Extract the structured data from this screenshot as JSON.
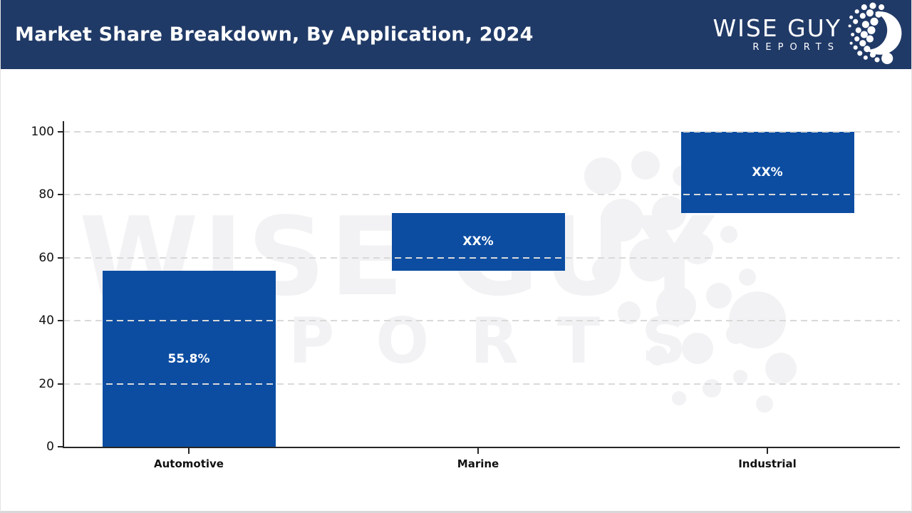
{
  "header": {
    "title": "Market Share Breakdown, By Application, 2024",
    "bg_color": "#203A67",
    "logo": {
      "line1": "WISE GUY",
      "line2": "REPORTS"
    }
  },
  "watermark": {
    "line1": "WISE GUY",
    "line2": "REPORTS"
  },
  "chart_data": {
    "type": "bar",
    "variant": "stacked-waterfall",
    "title": "Market Share Breakdown, By Application, 2024",
    "categories": [
      "Automotive",
      "Marine",
      "Industrial"
    ],
    "segments": [
      {
        "category": "Automotive",
        "from": 0,
        "to": 55.8,
        "label": "55.8%"
      },
      {
        "category": "Marine",
        "from": 55.8,
        "to": 74.3,
        "label": "XX%"
      },
      {
        "category": "Industrial",
        "from": 74.3,
        "to": 100,
        "label": "XX%"
      }
    ],
    "yticks": [
      0,
      20,
      40,
      60,
      80,
      100
    ],
    "ylim": [
      0,
      103.4
    ],
    "xlabel": "",
    "ylabel": "",
    "grid": true,
    "grid_style": "dashed",
    "legend": "none",
    "bar_color": "#0C4DA2",
    "bar_label_color": "#FFFFFF",
    "axis_color": "#262626",
    "grid_color": "#D9D9D9",
    "header_color": "#203A67"
  }
}
